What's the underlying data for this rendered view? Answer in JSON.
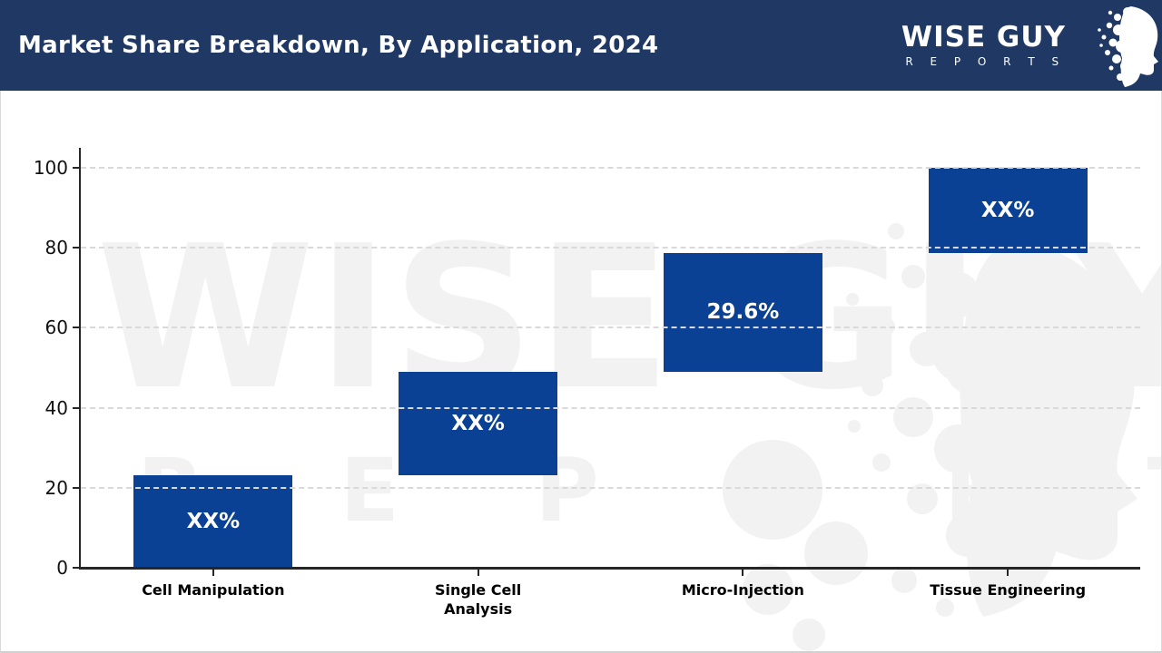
{
  "header": {
    "title": "Market Share Breakdown, By Application, 2024",
    "logo": {
      "wordmark": "WISE GUY",
      "subtitle": "R E P O R T S"
    }
  },
  "watermark": {
    "line1": "WISE GUY",
    "line2": "R E P O R T S"
  },
  "colors": {
    "header_bg": "#203864",
    "bar": "#0a4194",
    "grid": "#d9d9d9",
    "axis": "#262626",
    "watermark": "#f2f2f2",
    "bar_label": "#ffffff"
  },
  "chart_data": {
    "type": "bar",
    "subtype": "waterfall",
    "title": "Market Share Breakdown, By Application, 2024",
    "categories": [
      "Cell Manipulation",
      "Single Cell Analysis",
      "Micro-Injection",
      "Tissue Engineering"
    ],
    "category_label_lines": [
      [
        "Cell Manipulation"
      ],
      [
        "Single Cell",
        "Analysis"
      ],
      [
        "Micro-Injection"
      ],
      [
        "Tissue Engineering"
      ]
    ],
    "bars": [
      {
        "category": "Cell Manipulation",
        "start": 0,
        "end": 23.2,
        "label": "XX%"
      },
      {
        "category": "Single Cell Analysis",
        "start": 23.2,
        "end": 49.1,
        "label": "XX%"
      },
      {
        "category": "Micro-Injection",
        "start": 49.1,
        "end": 78.7,
        "label": "29.6%"
      },
      {
        "category": "Tissue Engineering",
        "start": 78.7,
        "end": 100,
        "label": "XX%"
      }
    ],
    "yticks": [
      0,
      20,
      40,
      60,
      80,
      100
    ],
    "ylim": [
      0,
      105
    ],
    "xlabel": "",
    "ylabel": "",
    "grid": "horizontal-dashed",
    "legend": "none",
    "bar_color": "#0a4194",
    "bar_width_fraction": 0.6
  }
}
